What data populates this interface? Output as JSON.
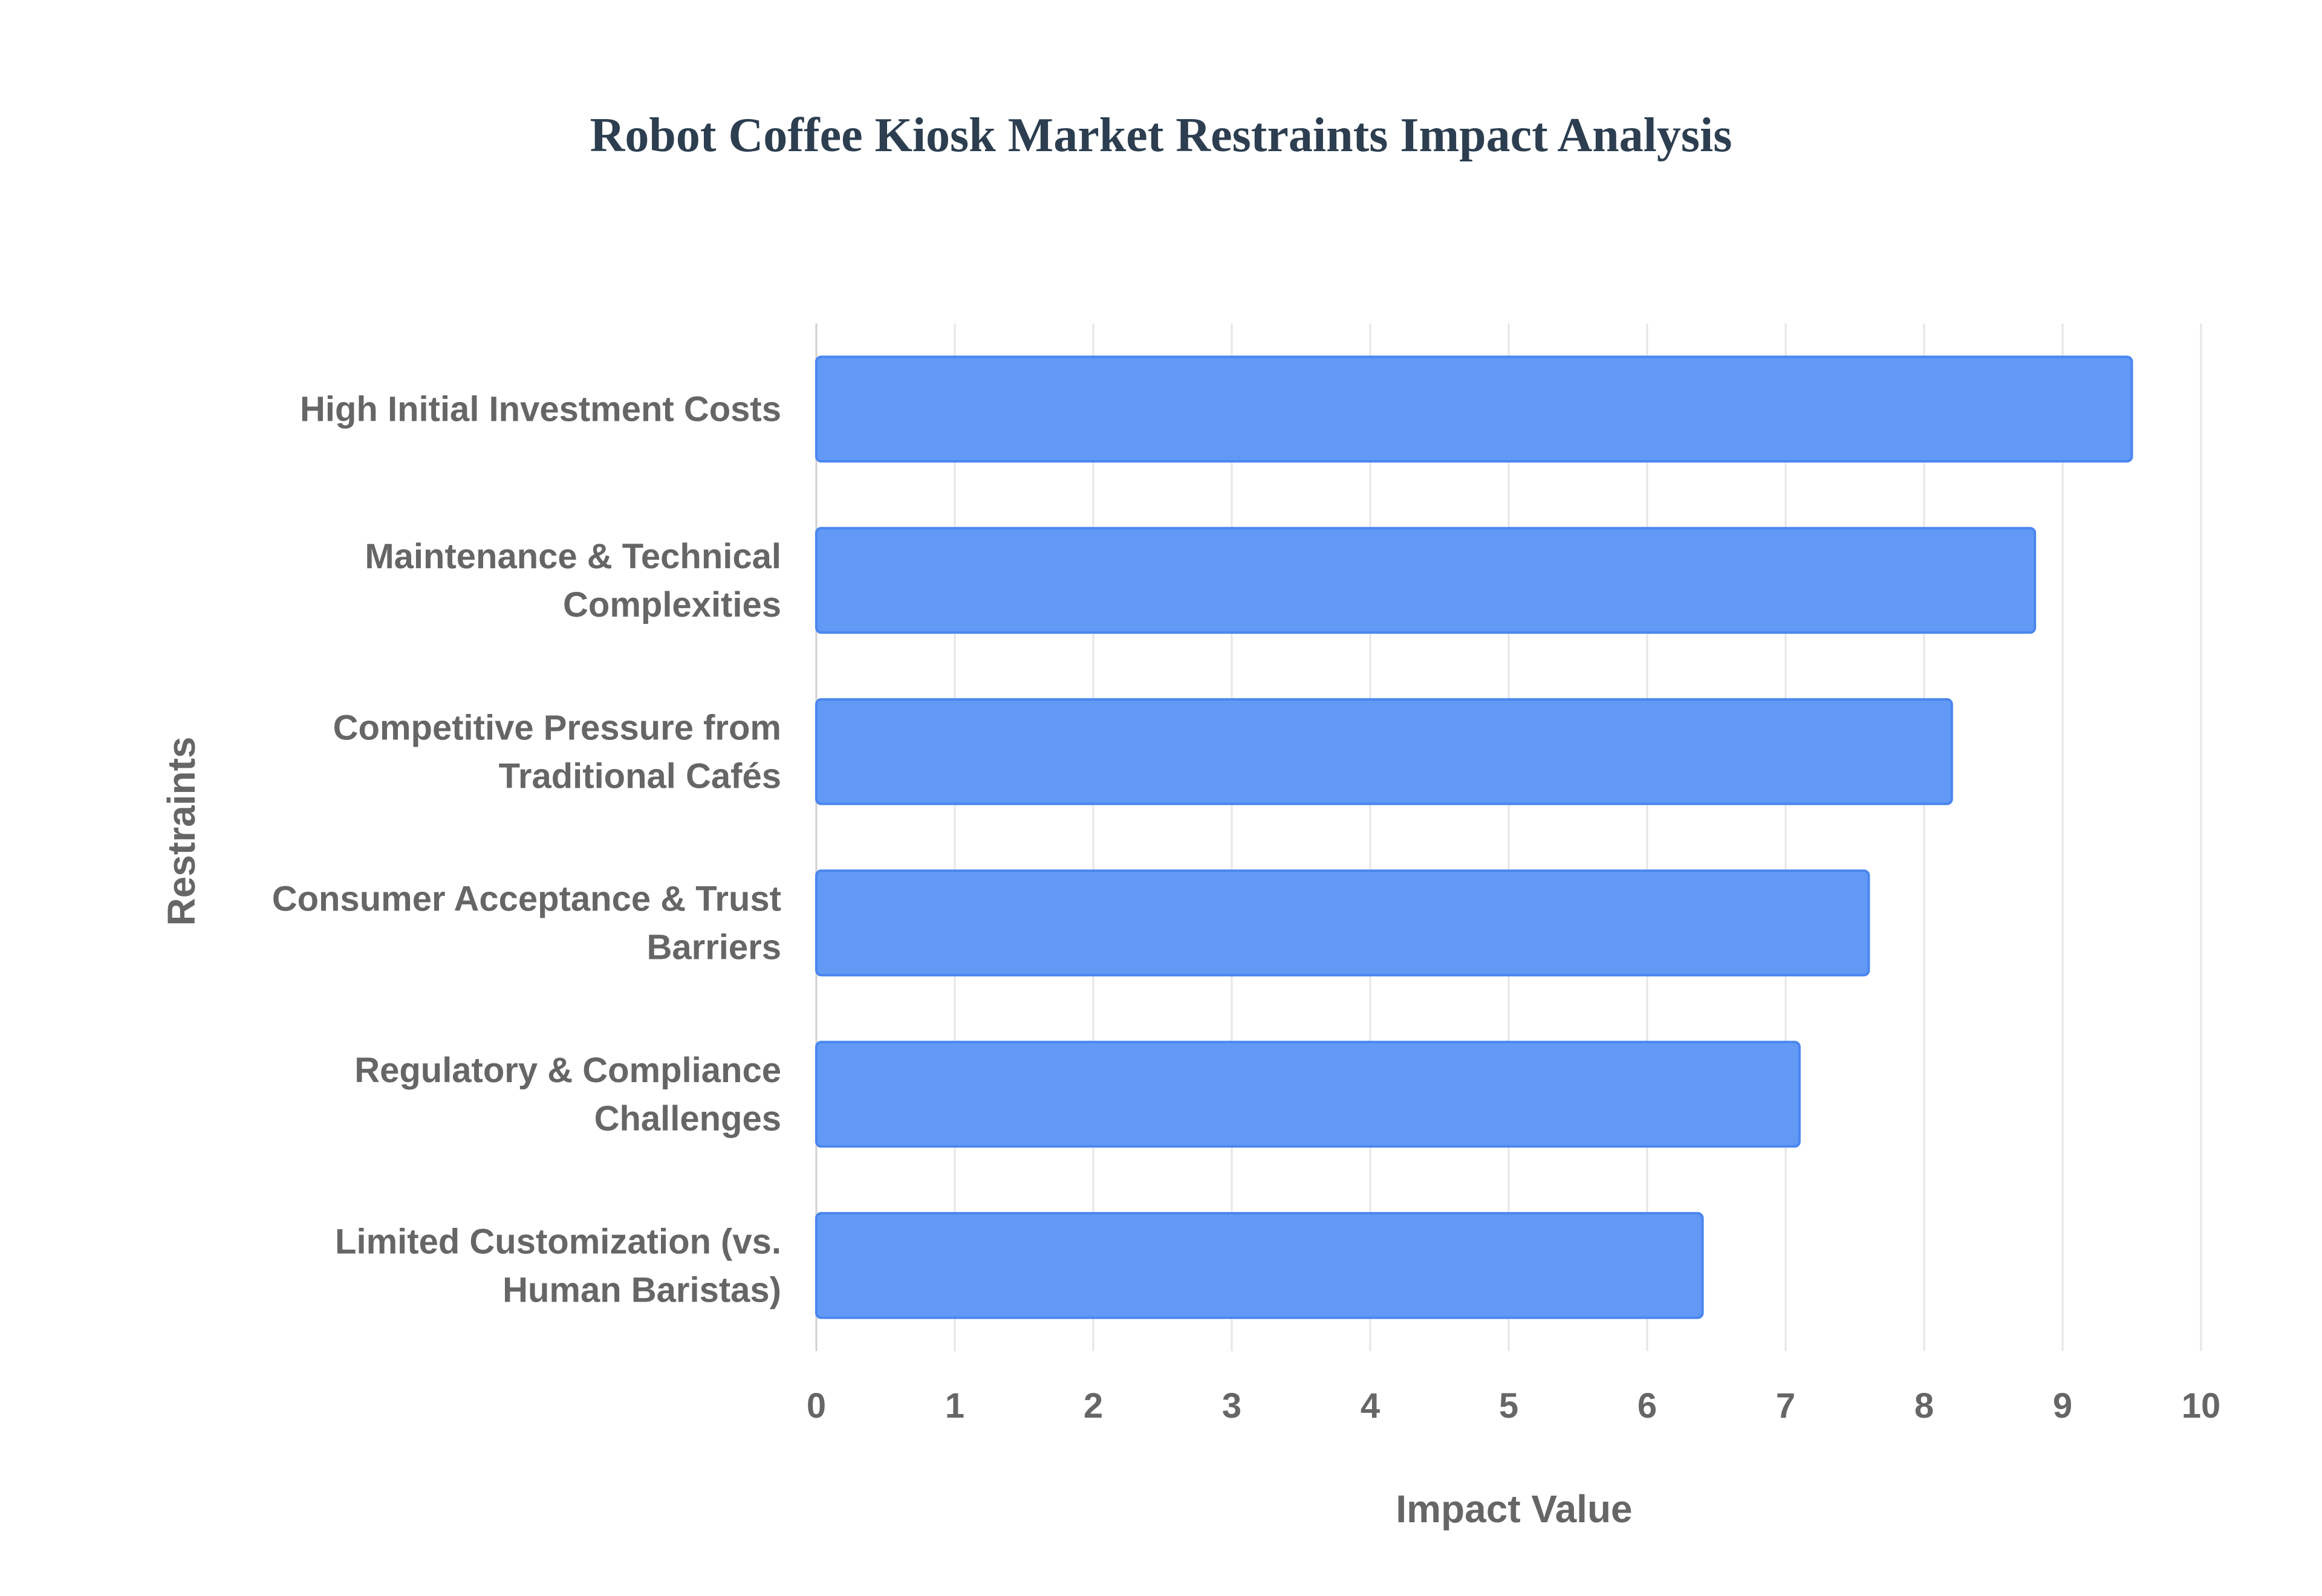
{
  "chart_data": {
    "type": "bar",
    "orientation": "horizontal",
    "title": "Robot Coffee Kiosk Market Restraints Impact Analysis",
    "xlabel": "Impact Value",
    "ylabel": "Restraints",
    "xlim": [
      0,
      10
    ],
    "xticks": [
      "0",
      "1",
      "2",
      "3",
      "4",
      "5",
      "6",
      "7",
      "8",
      "9",
      "10"
    ],
    "grid": true,
    "bar_color": "#6199f5",
    "bar_border_color": "#4a86ef",
    "categories": [
      [
        "High Initial Investment Costs"
      ],
      [
        "Maintenance & Technical",
        "Complexities"
      ],
      [
        "Competitive Pressure from",
        "Traditional Cafés"
      ],
      [
        "Consumer Acceptance & Trust",
        "Barriers"
      ],
      [
        "Regulatory & Compliance",
        "Challenges"
      ],
      [
        "Limited Customization (vs.",
        "Human Baristas)"
      ]
    ],
    "values": [
      9.5,
      8.8,
      8.2,
      7.6,
      7.1,
      6.4
    ]
  }
}
